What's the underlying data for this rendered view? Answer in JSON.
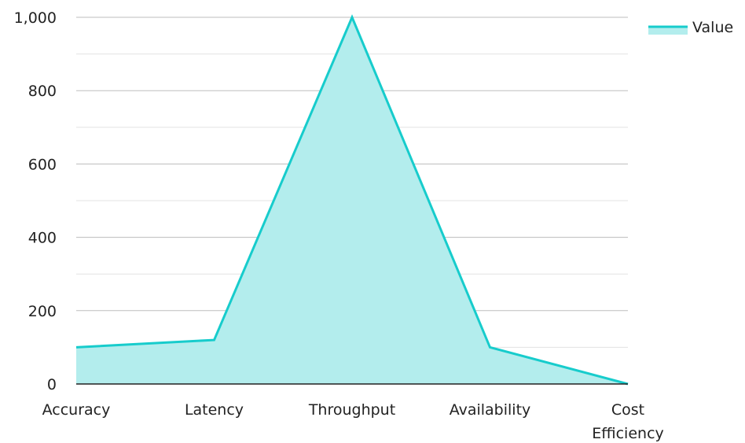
{
  "chart_data": {
    "type": "area",
    "categories": [
      "Accuracy",
      "Latency",
      "Throughput",
      "Availability",
      "Cost Efficiency"
    ],
    "category_lines": [
      [
        "Accuracy"
      ],
      [
        "Latency"
      ],
      [
        "Throughput"
      ],
      [
        "Availability"
      ],
      [
        "Cost",
        "Efficiency"
      ]
    ],
    "series": [
      {
        "name": "Value",
        "values": [
          100,
          120,
          1000,
          100,
          0
        ]
      }
    ],
    "ylim": [
      0,
      1000
    ],
    "yticks": [
      0,
      200,
      400,
      600,
      800,
      1000
    ],
    "ytick_labels": [
      "0",
      "200",
      "400",
      "600",
      "800",
      "1,000"
    ],
    "minor_grid_step": 100,
    "grid": true,
    "legend_position": "top-right",
    "colors": {
      "line": "#17cccc",
      "fill": "#b3eded",
      "grid_major": "#bdbdbd",
      "grid_minor": "#e3e3e3",
      "axis": "#222222",
      "text": "#222222"
    }
  }
}
